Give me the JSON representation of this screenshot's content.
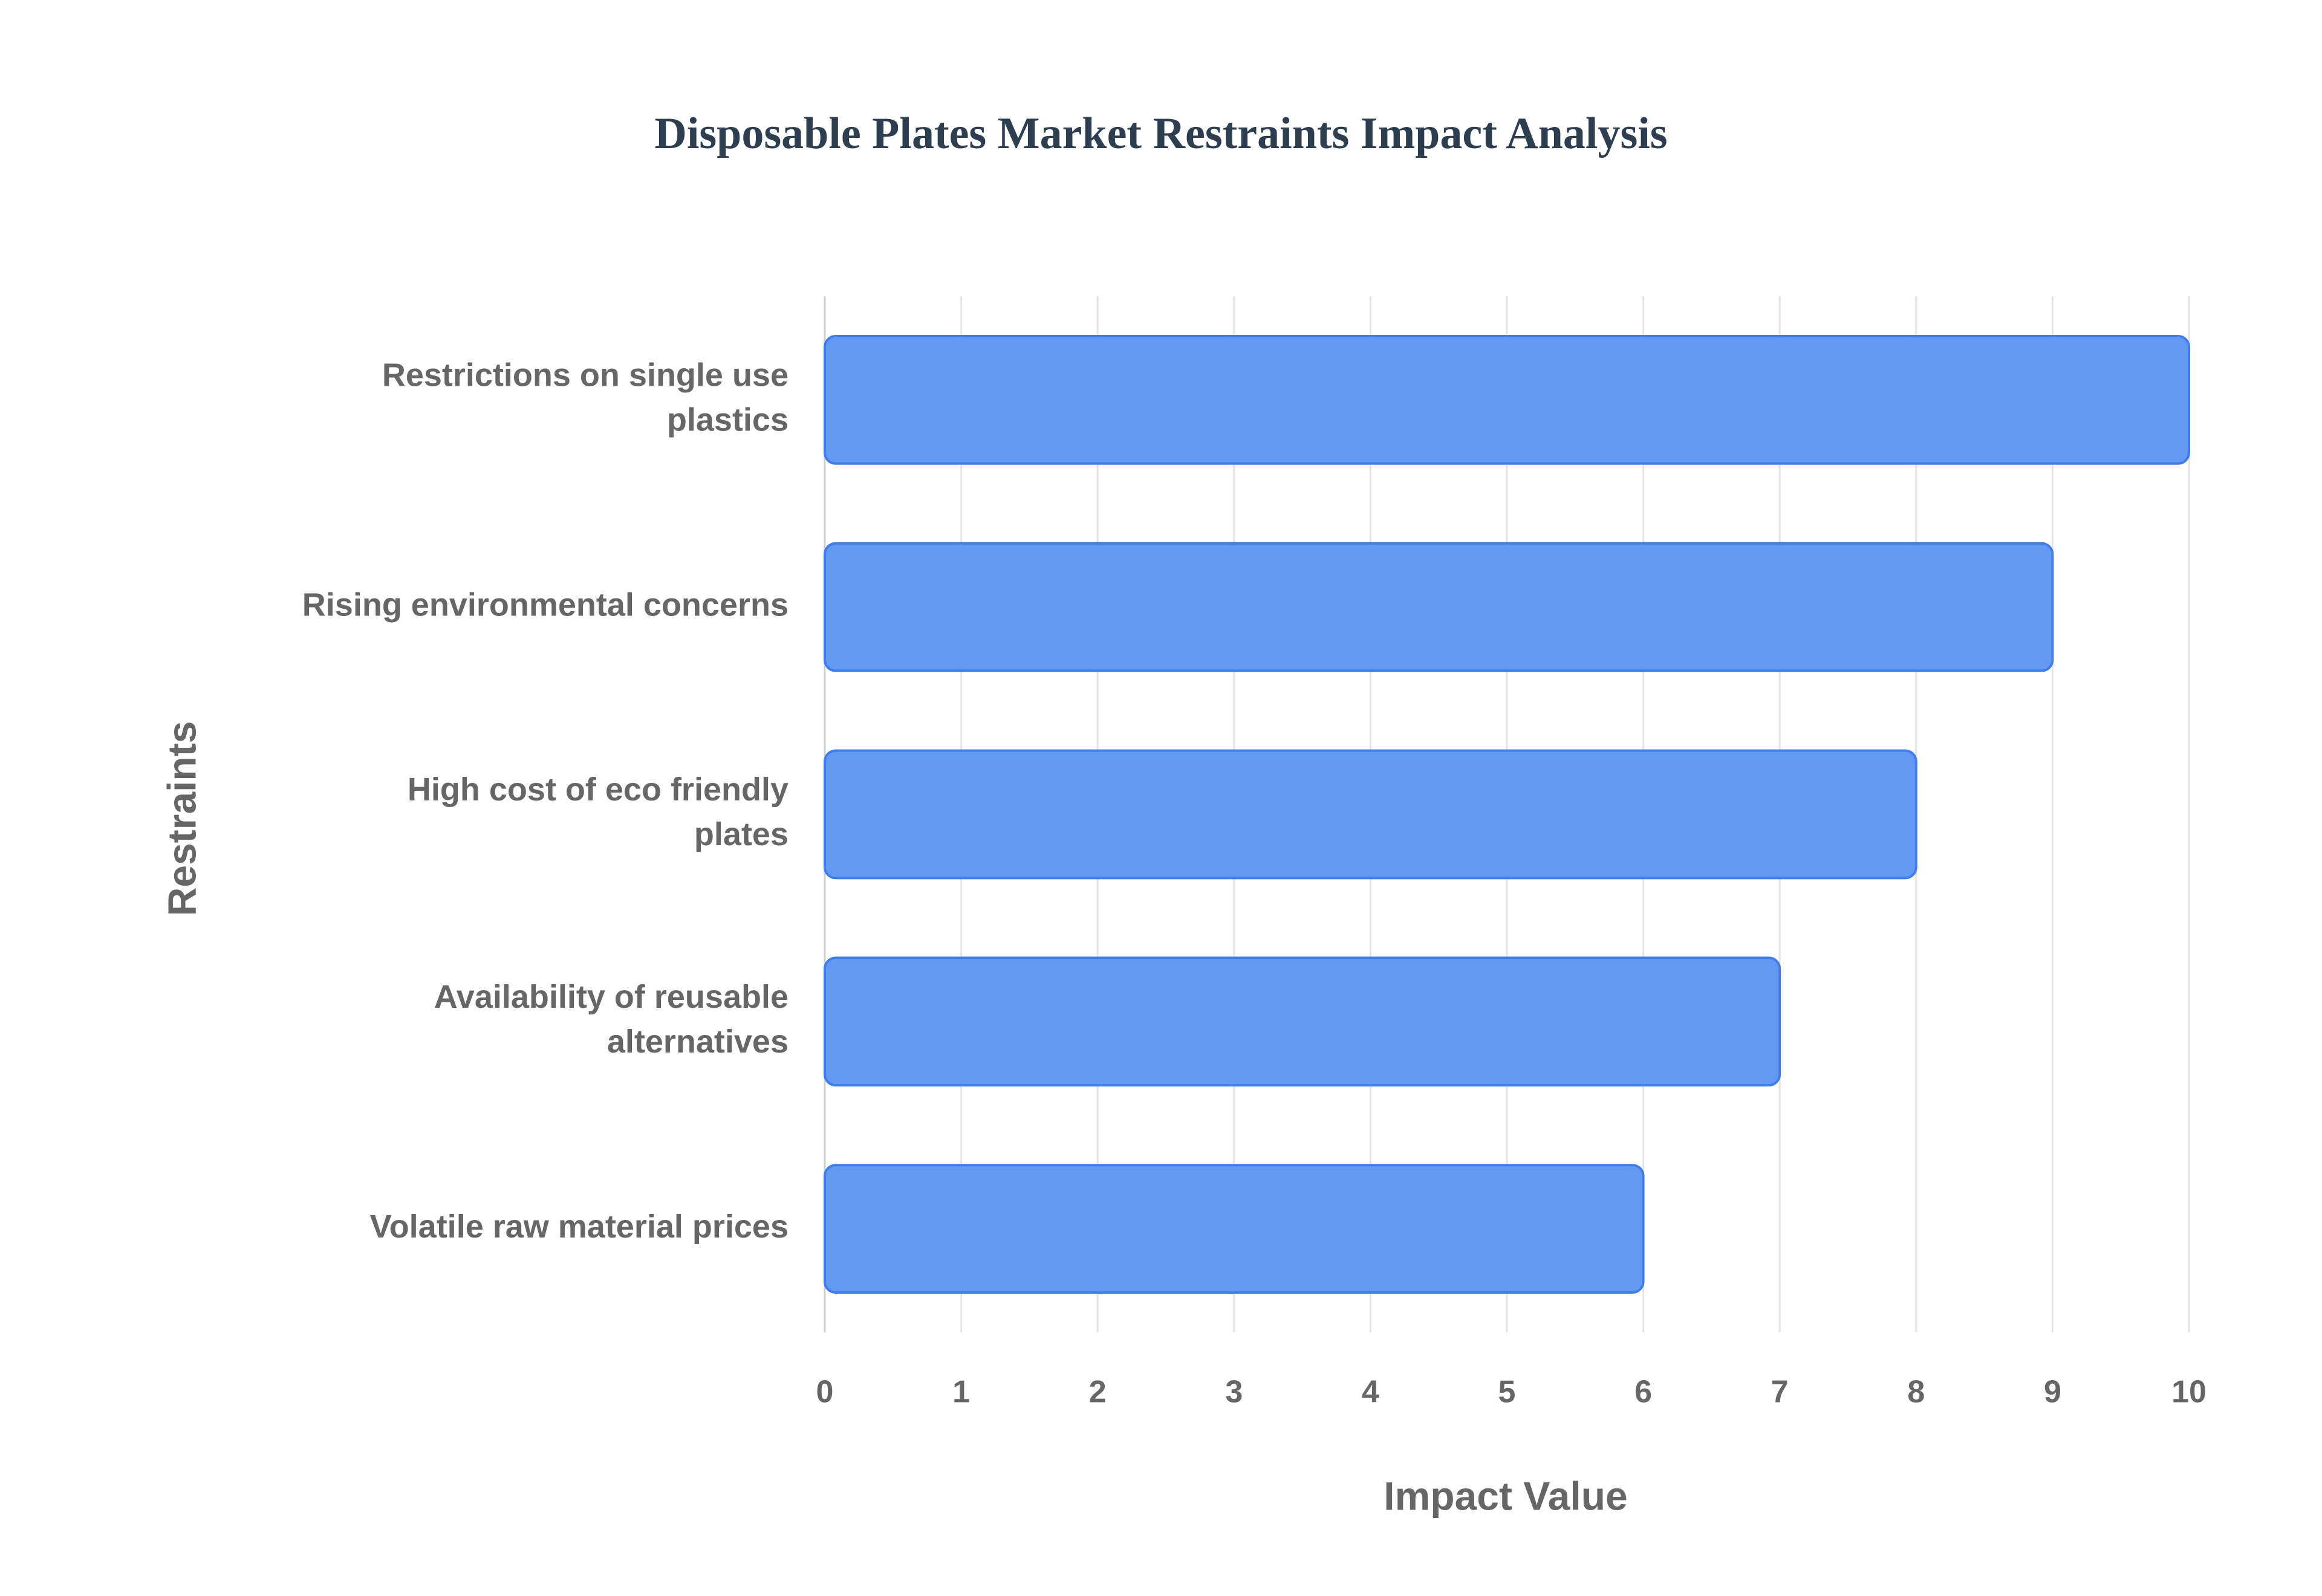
{
  "chart_data": {
    "type": "bar",
    "orientation": "horizontal",
    "title": "Disposable Plates Market Restraints Impact Analysis",
    "xlabel": "Impact Value",
    "ylabel": "Restraints",
    "categories": [
      "Restrictions on single use plastics",
      "Rising environmental concerns",
      "High cost of eco friendly plates",
      "Availability of reusable alternatives",
      "Volatile raw material prices"
    ],
    "values": [
      10,
      9,
      8,
      7,
      6
    ],
    "color": "#6399f5",
    "edge_color": "#3f7ee8",
    "xlim": [
      0,
      10
    ],
    "xticks": [
      0,
      1,
      2,
      3,
      4,
      5,
      6,
      7,
      8,
      9,
      10
    ],
    "grid": true
  }
}
